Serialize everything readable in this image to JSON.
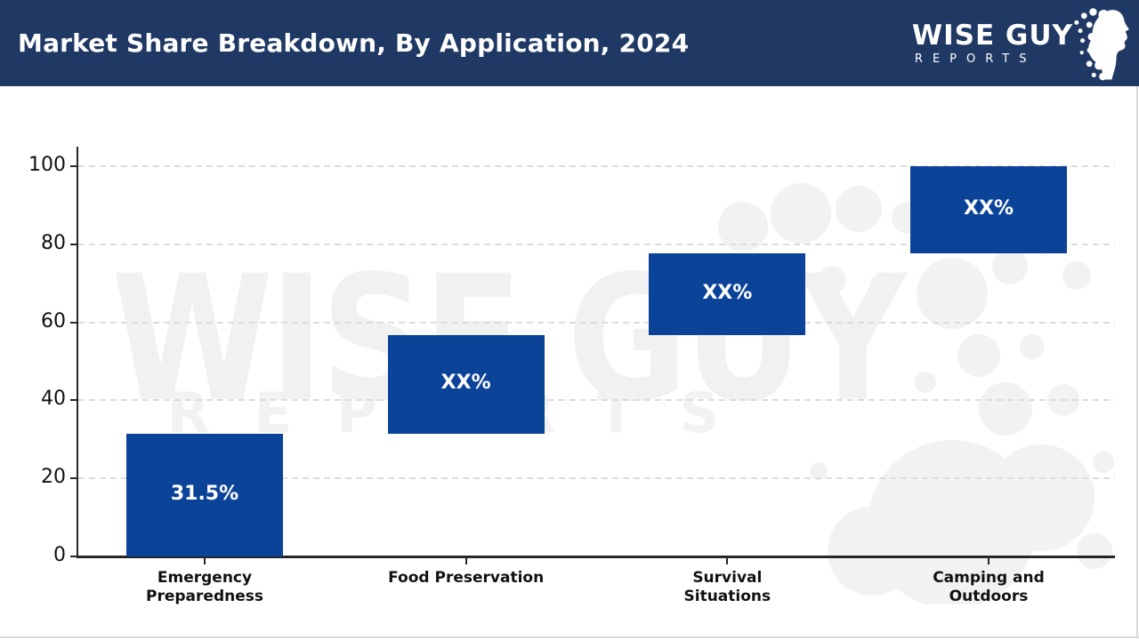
{
  "header": {
    "title": "Market Share Breakdown, By Application, 2024",
    "logo": {
      "name": "WISE GUY",
      "sub": "REPORTS"
    }
  },
  "watermark": {
    "name": "WISE GUY",
    "sub": "REPORTS"
  },
  "colors": {
    "header_bg": "#1f3864",
    "bar": "#0b4399",
    "bar_label": "#ffffff",
    "grid": "#dcdcdc",
    "axis": "#262626",
    "text": "#111111",
    "watermark": "#f1f1f2",
    "page_border": "#d9d9d9"
  },
  "chart_data": {
    "type": "bar",
    "subtype": "floating-waterfall",
    "title": "Market Share Breakdown, By Application, 2024",
    "categories": [
      "Emergency Preparedness",
      "Food Preservation",
      "Survival Situations",
      "Camping and Outdoors"
    ],
    "category_lines": [
      [
        "Emergency",
        "Preparedness"
      ],
      [
        "Food Preservation"
      ],
      [
        "Survival",
        "Situations"
      ],
      [
        "Camping and",
        "Outdoors"
      ]
    ],
    "series": [
      {
        "name": "Market Share",
        "segments": [
          {
            "category": "Emergency Preparedness",
            "start": 0,
            "end": 31.5,
            "label": "31.5%"
          },
          {
            "category": "Food Preservation",
            "start": 31.5,
            "end": 56.7,
            "label": "XX%"
          },
          {
            "category": "Survival Situations",
            "start": 56.7,
            "end": 77.7,
            "label": "XX%"
          },
          {
            "category": "Camping and Outdoors",
            "start": 77.7,
            "end": 100,
            "label": "XX%"
          }
        ]
      }
    ],
    "ylim": [
      0,
      105
    ],
    "yticks": [
      0,
      20,
      40,
      60,
      80,
      100
    ],
    "xlabel": "",
    "ylabel": "",
    "grid": "horizontal-dashed",
    "legend": "none"
  }
}
